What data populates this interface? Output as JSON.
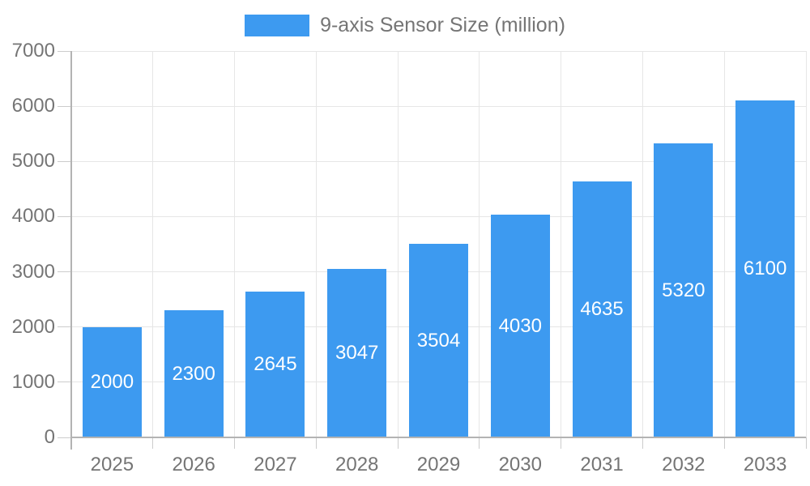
{
  "chart_data": {
    "type": "bar",
    "title": "9-axis Sensor Size (million)",
    "categories": [
      "2025",
      "2026",
      "2027",
      "2028",
      "2029",
      "2030",
      "2031",
      "2032",
      "2033"
    ],
    "values": [
      2000,
      2300,
      2645,
      3047,
      3504,
      4030,
      4635,
      5320,
      6100
    ],
    "xlabel": "",
    "ylabel": "",
    "ylim": [
      0,
      7000
    ],
    "y_ticks": [
      0,
      1000,
      2000,
      3000,
      4000,
      5000,
      6000,
      7000
    ],
    "grid": true,
    "legend_position": "top-center",
    "bar_color": "#3d9af0",
    "bar_label_color": "#ffffff",
    "axis_text_color": "#757575"
  }
}
